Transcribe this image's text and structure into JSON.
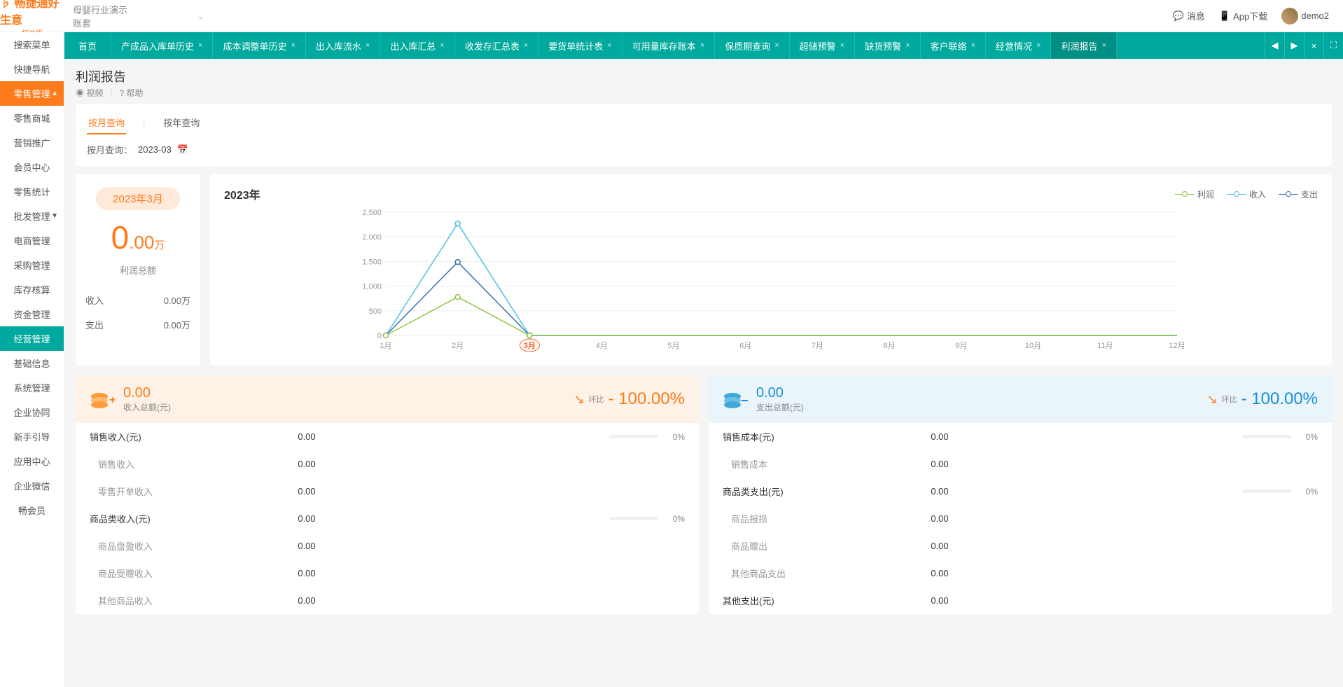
{
  "header": {
    "logo_main": "畅捷通好生意",
    "logo_sub": "标准版",
    "account": "母婴行业演示账套",
    "msg": "消息",
    "app_dl": "App下载",
    "user": "demo2"
  },
  "tabs": {
    "home": "首页",
    "items": [
      "产成品入库单历史",
      "成本调整单历史",
      "出入库流水",
      "出入库汇总",
      "收发存汇总表",
      "要货单统计表",
      "可用量库存账本",
      "保质期查询",
      "超储预警",
      "缺货预警",
      "客户联络",
      "经营情况",
      "利润报告"
    ],
    "active_index": 12
  },
  "sidebar": {
    "items": [
      "搜索菜单",
      "快捷导航",
      "零售管理",
      "零售商城",
      "营销推广",
      "会员中心",
      "零售统计",
      "批发管理",
      "电商管理",
      "采购管理",
      "库存核算",
      "资金管理",
      "经营管理",
      "基础信息",
      "系统管理",
      "企业协同",
      "新手引导",
      "应用中心",
      "企业微信",
      "畅会员"
    ],
    "orange_index": 2,
    "teal_index": 12,
    "arrow_indices": [
      2,
      7
    ]
  },
  "page": {
    "title": "利润报告",
    "video": "视频",
    "help": "帮助",
    "sub_tabs": [
      "按月查询",
      "按年查询"
    ],
    "active_sub": 0,
    "query_label": "按月查询：",
    "query_date": "2023-03"
  },
  "summary": {
    "period": "2023年3月",
    "big_int": "0",
    "big_dec": ".00",
    "big_unit": "万",
    "big_label": "利润总额",
    "income_label": "收入",
    "income_val": "0.00万",
    "expense_label": "支出",
    "expense_val": "0.00万"
  },
  "chart": {
    "title": "2023年",
    "legend": [
      "利润",
      "收入",
      "支出"
    ],
    "colors": {
      "profit": "#8ec740",
      "income": "#4fc0e8",
      "expense": "#3b6fb5"
    },
    "x_labels": [
      "1月",
      "2月",
      "3月",
      "4月",
      "5月",
      "6月",
      "7月",
      "8月",
      "9月",
      "10月",
      "11月",
      "12月"
    ],
    "highlight_x": 2,
    "y_ticks": [
      0,
      500,
      1000,
      1500,
      2000,
      2500
    ],
    "ylim": [
      0,
      2500
    ],
    "series": {
      "profit": [
        0,
        780,
        0,
        0,
        0,
        0,
        0,
        0,
        0,
        0,
        0,
        0
      ],
      "income": [
        0,
        2270,
        0,
        0,
        0,
        0,
        0,
        0,
        0,
        0,
        0,
        0
      ],
      "expense": [
        0,
        1490,
        0,
        0,
        0,
        0,
        0,
        0,
        0,
        0,
        0,
        0
      ]
    },
    "grid_color": "#eeeeee",
    "axis_color": "#dddddd",
    "text_color": "#999999",
    "bg": "#ffffff"
  },
  "panels": {
    "income": {
      "amount": "0.00",
      "sub": "收入总额(元)",
      "trend_label": "环比",
      "trend_val": "- 100.00%",
      "rows": [
        {
          "label": "销售收入(元)",
          "val": "0.00",
          "pct": "0%",
          "bold": true,
          "bar": true
        },
        {
          "label": "销售收入",
          "val": "0.00",
          "bold": false
        },
        {
          "label": "零售开单收入",
          "val": "0.00",
          "bold": false
        },
        {
          "label": "商品类收入(元)",
          "val": "0.00",
          "pct": "0%",
          "bold": true,
          "bar": true
        },
        {
          "label": "商品盘盈收入",
          "val": "0.00",
          "bold": false
        },
        {
          "label": "商品受赠收入",
          "val": "0.00",
          "bold": false
        },
        {
          "label": "其他商品收入",
          "val": "0.00",
          "bold": false
        }
      ]
    },
    "expense": {
      "amount": "0.00",
      "sub": "支出总额(元)",
      "trend_label": "环比",
      "trend_val": "- 100.00%",
      "rows": [
        {
          "label": "销售成本(元)",
          "val": "0.00",
          "pct": "0%",
          "bold": true,
          "bar": true
        },
        {
          "label": "销售成本",
          "val": "0.00",
          "bold": false
        },
        {
          "label": "商品类支出(元)",
          "val": "0.00",
          "pct": "0%",
          "bold": true,
          "bar": true
        },
        {
          "label": "商品报损",
          "val": "0.00",
          "bold": false
        },
        {
          "label": "商品赠出",
          "val": "0.00",
          "bold": false
        },
        {
          "label": "其他商品支出",
          "val": "0.00",
          "bold": false
        },
        {
          "label": "其他支出(元)",
          "val": "0.00",
          "bold": true
        }
      ]
    }
  }
}
